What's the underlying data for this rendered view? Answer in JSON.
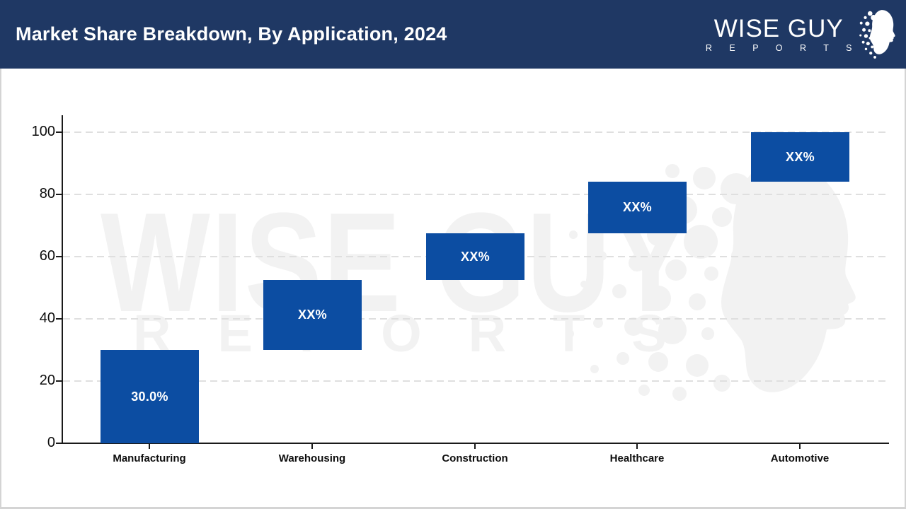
{
  "header": {
    "title": "Market Share Breakdown, By Application, 2024",
    "logo": {
      "line1": "WISE GUY",
      "line2": "REPORTS"
    }
  },
  "watermark": {
    "line1": "WISE GUY",
    "line2": "REPORTS"
  },
  "colors": {
    "header_bg": "#1F3864",
    "bar": "#0C4DA2",
    "bar_label": "#ffffff",
    "axis": "#1a1a1a",
    "grid": "#dfdfdf",
    "watermark": "#f2f2f2",
    "tick_text": "#0d0d0d"
  },
  "chart_data": {
    "type": "bar",
    "subtype": "waterfall",
    "title": "Market Share Breakdown, By Application, 2024",
    "categories": [
      "Manufacturing",
      "Warehousing",
      "Construction",
      "Healthcare",
      "Automotive"
    ],
    "segments": [
      {
        "category": "Manufacturing",
        "start": 0,
        "end": 30,
        "label": "30.0%"
      },
      {
        "category": "Warehousing",
        "start": 30,
        "end": 52.5,
        "label": "XX%"
      },
      {
        "category": "Construction",
        "start": 52.5,
        "end": 67.5,
        "label": "XX%"
      },
      {
        "category": "Healthcare",
        "start": 67.5,
        "end": 84,
        "label": "XX%"
      },
      {
        "category": "Automotive",
        "start": 84,
        "end": 100,
        "label": "XX%"
      }
    ],
    "yticks": [
      0,
      20,
      40,
      60,
      80,
      100
    ],
    "ylim": [
      0,
      105
    ],
    "xlabel": "",
    "ylabel": "",
    "grid": "horizontal-dashed",
    "legend": "none"
  }
}
